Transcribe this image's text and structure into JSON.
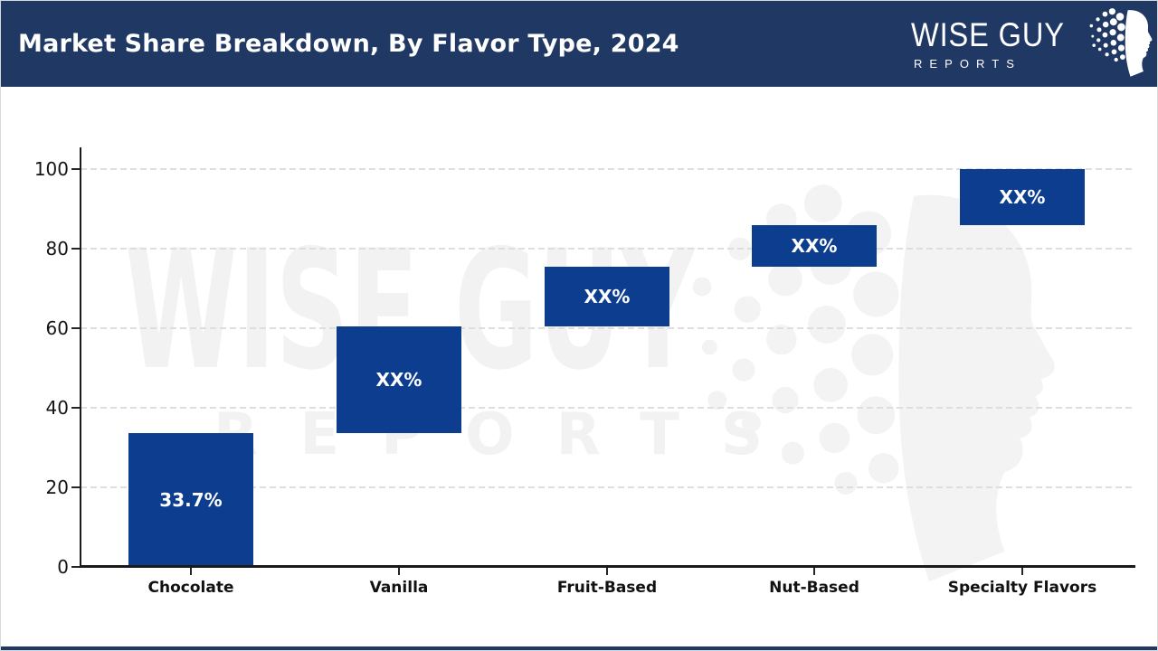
{
  "header": {
    "title": "Market Share Breakdown, By Flavor Type, 2024",
    "bg_color": "#1f3864",
    "logo": {
      "line1": "WISE GUY",
      "line2": "REPORTS"
    }
  },
  "watermark": {
    "line1": "WISE GUY",
    "line2": "REPORTS"
  },
  "chart_data": {
    "type": "bar",
    "subtype": "waterfall",
    "title": "Market Share Breakdown, By Flavor Type, 2024",
    "categories": [
      "Chocolate",
      "Vanilla",
      "Fruit-Based",
      "Nut-Based",
      "Specialty Flavors"
    ],
    "segments": [
      {
        "category": "Chocolate",
        "start": 0,
        "end": 33.7,
        "label": "33.7%"
      },
      {
        "category": "Vanilla",
        "start": 33.7,
        "end": 60.5,
        "label": "XX%"
      },
      {
        "category": "Fruit-Based",
        "start": 60.5,
        "end": 75.5,
        "label": "XX%"
      },
      {
        "category": "Nut-Based",
        "start": 75.5,
        "end": 86,
        "label": "XX%"
      },
      {
        "category": "Specialty Flavors",
        "start": 86,
        "end": 100,
        "label": "XX%"
      }
    ],
    "y_ticks": [
      0,
      20,
      40,
      60,
      80,
      100
    ],
    "ylim": [
      0,
      100
    ],
    "xlabel": "",
    "ylabel": "",
    "grid": "horizontal-dashed",
    "legend": "none",
    "bar_color": "#0d3d8f",
    "bar_label_color": "#ffffff",
    "axis_color": "#1a1a1a",
    "gridline_color": "#dedede"
  }
}
